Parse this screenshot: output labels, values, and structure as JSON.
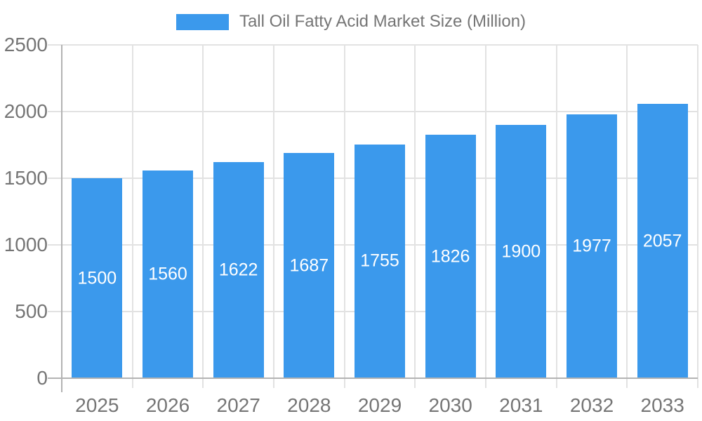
{
  "chart_data": {
    "type": "bar",
    "title": "Tall Oil Fatty Acid Market Size (Million)",
    "categories": [
      "2025",
      "2026",
      "2027",
      "2028",
      "2029",
      "2030",
      "2031",
      "2032",
      "2033"
    ],
    "values": [
      1500,
      1560,
      1622,
      1687,
      1755,
      1826,
      1900,
      1977,
      2057
    ],
    "xlabel": "",
    "ylabel": "",
    "ylim": [
      0,
      2500
    ],
    "ytick_step": 500,
    "ytick_labels": [
      "0",
      "500",
      "1000",
      "1500",
      "2000",
      "2500"
    ],
    "grid": true,
    "legend_position": "top",
    "bar_value_labels_inside": true
  },
  "legend": {
    "label": "Tall Oil Fatty Acid Market Size (Million)"
  },
  "colors": {
    "bar": "#3B99EC",
    "bar_value_text": "#FFFFFF",
    "axis_line": "#B3B3B3",
    "gridline": "#E2E2E2",
    "axis_text": "#757575",
    "legend_text": "#757575",
    "background": "#FFFFFF"
  }
}
